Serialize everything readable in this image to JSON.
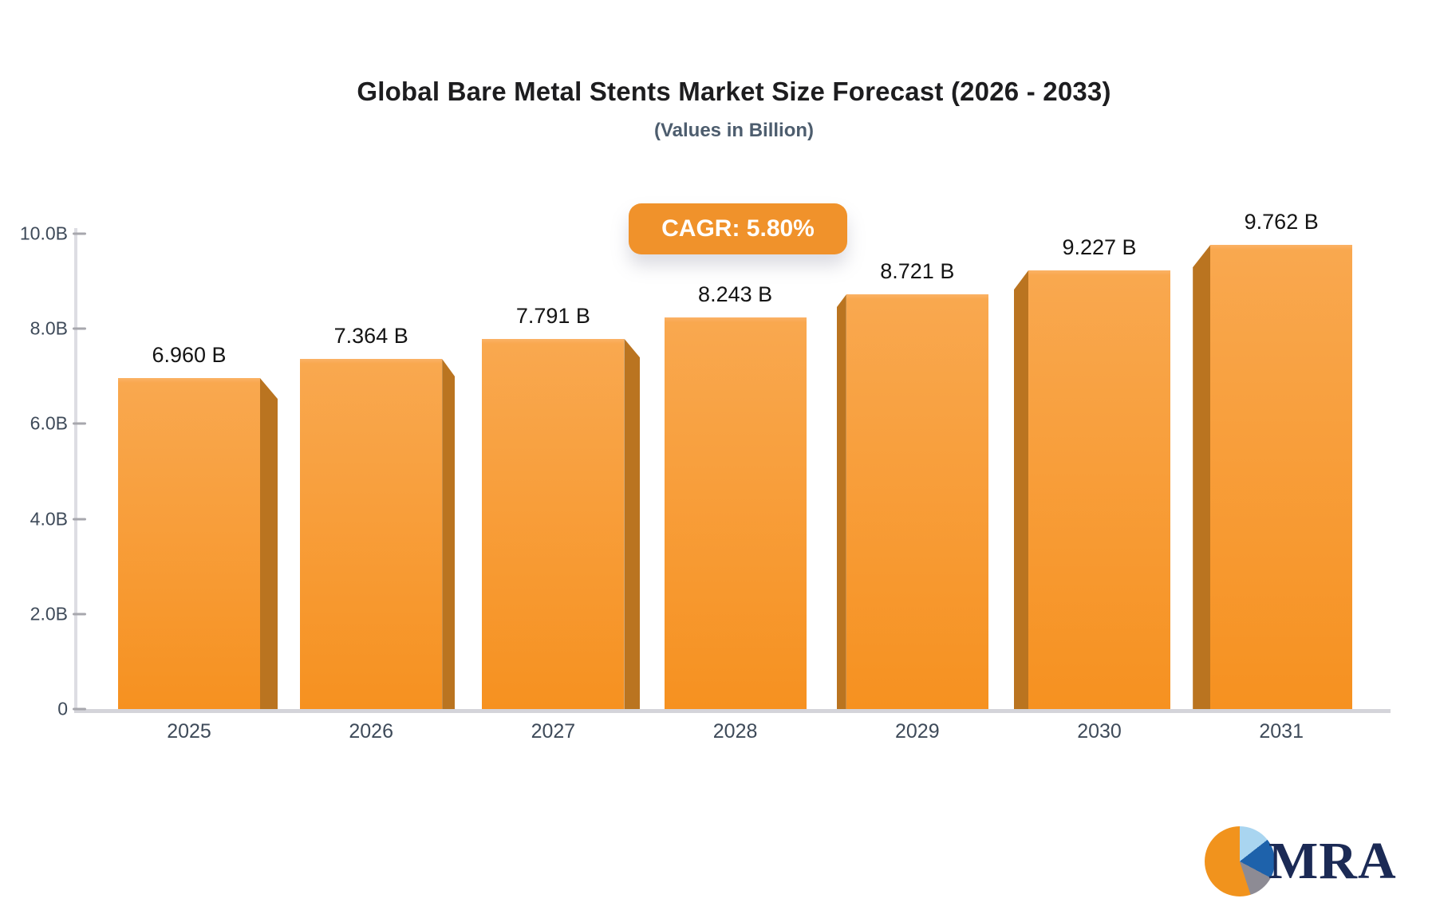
{
  "header": {
    "title": "Global Bare Metal Stents Market Size Forecast (2026 - 2033)",
    "subtitle": "(Values in Billion)"
  },
  "badge": {
    "label": "CAGR: 5.80%",
    "bg_color": "#f0922b"
  },
  "chart_data": {
    "type": "bar",
    "title": "Global Bare Metal Stents Market Size Forecast (2026 - 2033)",
    "subtitle": "(Values in Billion)",
    "annotation": "CAGR: 5.80%",
    "categories": [
      "2025",
      "2026",
      "2027",
      "2028",
      "2029",
      "2030",
      "2031"
    ],
    "values": [
      6.96,
      7.364,
      7.791,
      8.243,
      8.721,
      9.227,
      9.762
    ],
    "bar_labels": [
      "6.960 B",
      "7.364 B",
      "7.791 B",
      "8.243 B",
      "8.721 B",
      "9.227 B",
      "9.762 B"
    ],
    "xlabel": "",
    "ylabel": "",
    "ylim": [
      0,
      10
    ],
    "yticks": [
      {
        "value": 10,
        "label": "10.0B"
      },
      {
        "value": 8,
        "label": "8.0B"
      },
      {
        "value": 6,
        "label": "6.0B"
      },
      {
        "value": 4,
        "label": "4.0B"
      },
      {
        "value": 2,
        "label": "2.0B"
      },
      {
        "value": 0,
        "label": "0"
      }
    ],
    "grid": false,
    "legend": "none",
    "colors": {
      "bar_top": "#f9a84f",
      "bar_bottom": "#f69120",
      "bar_side": "#ba7420",
      "axis_text": "#3e4a59",
      "axis_line": "#d4d4da",
      "value_label_text": "#141414"
    }
  },
  "logo": {
    "text": "MRA",
    "icon": "pie-chart-icon",
    "colors": {
      "orange": "#f1931d",
      "light_blue": "#a9d5f0",
      "dark_blue": "#1e62ab",
      "gray": "#8d8b94",
      "text_navy": "#1b2a55"
    }
  }
}
